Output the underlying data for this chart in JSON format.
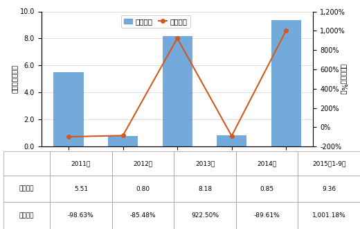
{
  "categories": [
    "2011年",
    "2012年",
    "2013年",
    "2014年",
    "2015年1-9月"
  ],
  "bar_values": [
    5.51,
    0.8,
    8.18,
    0.85,
    9.36
  ],
  "line_values": [
    -98.63,
    -85.48,
    922.5,
    -89.61,
    1001.18
  ],
  "bar_color": "#5b9bd5",
  "line_color": "#d05a1e",
  "marker_color": "#d05a1e",
  "ylabel_left": "出口数量（吨）",
  "ylabel_right": "同比增速（%）",
  "ylim_left": [
    0.0,
    10.0
  ],
  "ylim_right": [
    -200,
    1200
  ],
  "yticks_left": [
    0.0,
    2.0,
    4.0,
    6.0,
    8.0,
    10.0
  ],
  "yticks_right": [
    -200,
    0,
    200,
    400,
    600,
    800,
    1000,
    1200
  ],
  "ytick_labels_right": [
    "-200%",
    "0%",
    "200%",
    "400%",
    "600%",
    "800%",
    "1,000%",
    "1,200%"
  ],
  "legend_bar_label": "出口数量",
  "legend_line_label": "同比增长",
  "table_row1_label": "出口数量",
  "table_row2_label": "同比增长",
  "table_row1_values": [
    "5.51",
    "0.80",
    "8.18",
    "0.85",
    "9.36"
  ],
  "table_row2_values": [
    "-98.63%",
    "-85.48%",
    "922.50%",
    "-89.61%",
    "1,001.18%"
  ],
  "bg_color": "#ffffff",
  "grid_color": "#d0d0d0"
}
